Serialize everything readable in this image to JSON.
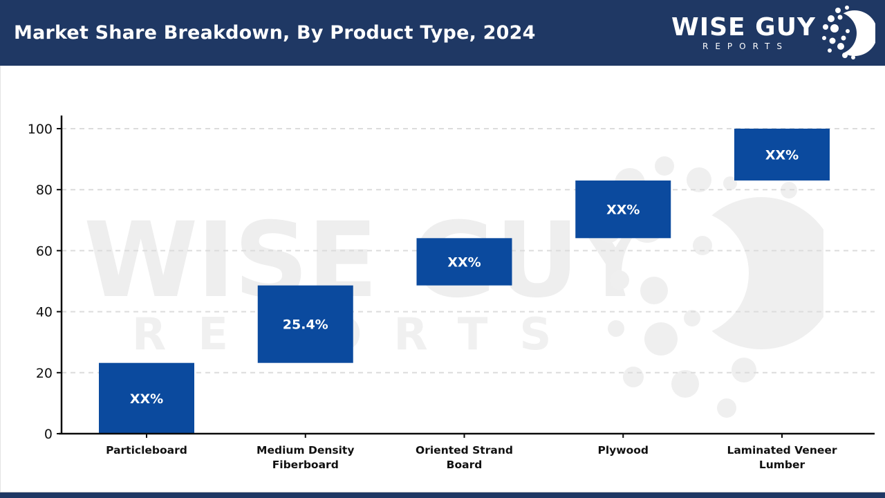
{
  "header": {
    "title": "Market Share Breakdown, By Product Type, 2024",
    "logo": {
      "wordmark": "WISE GUY",
      "subtitle": "REPORTS"
    }
  },
  "watermark": {
    "line1": "WISE GUY",
    "line2": "REPORTS"
  },
  "colors": {
    "header_navy": "#1f3864",
    "bar_blue": "#0b4a9e",
    "grid_gray": "#dcdcdc",
    "watermark_gray": "#eeeeee",
    "bar_label_white": "#ffffff",
    "axis_black": "#0a0a0a"
  },
  "chart_data": {
    "type": "bar",
    "variant": "waterfall-breakdown",
    "title": "Market Share Breakdown, By Product Type, 2024",
    "categories": [
      "Particleboard",
      "Medium Density Fiberboard",
      "Oriented Strand Board",
      "Plywood",
      "Laminated Veneer Lumber"
    ],
    "category_label_lines": [
      [
        "Particleboard"
      ],
      [
        "Medium Density",
        "Fiberboard"
      ],
      [
        "Oriented Strand",
        "Board"
      ],
      [
        "Plywood"
      ],
      [
        "Laminated Veneer",
        "Lumber"
      ]
    ],
    "bars": [
      {
        "category": "Particleboard",
        "start": 0,
        "end": 23.2,
        "height": 23.2,
        "value_label": "XX%"
      },
      {
        "category": "Medium Density Fiberboard",
        "start": 23.2,
        "end": 48.6,
        "height": 25.4,
        "value_label": "25.4%",
        "value": 25.4
      },
      {
        "category": "Oriented Strand Board",
        "start": 48.6,
        "end": 64.1,
        "height": 15.5,
        "value_label": "XX%"
      },
      {
        "category": "Plywood",
        "start": 64.1,
        "end": 83,
        "height": 18.9,
        "value_label": "XX%"
      },
      {
        "category": "Laminated Veneer Lumber",
        "start": 83,
        "end": 100,
        "height": 17,
        "value_label": "XX%"
      }
    ],
    "yticks": [
      0,
      20,
      40,
      60,
      80,
      100
    ],
    "ylim": [
      0,
      104
    ],
    "xlabel": "",
    "ylabel": "",
    "grid": {
      "horizontal": true,
      "style": "dashed",
      "color": "#dcdcdc"
    },
    "legend": "none",
    "bar_color": "#0b4a9e",
    "bar_label_color": "#ffffff"
  }
}
